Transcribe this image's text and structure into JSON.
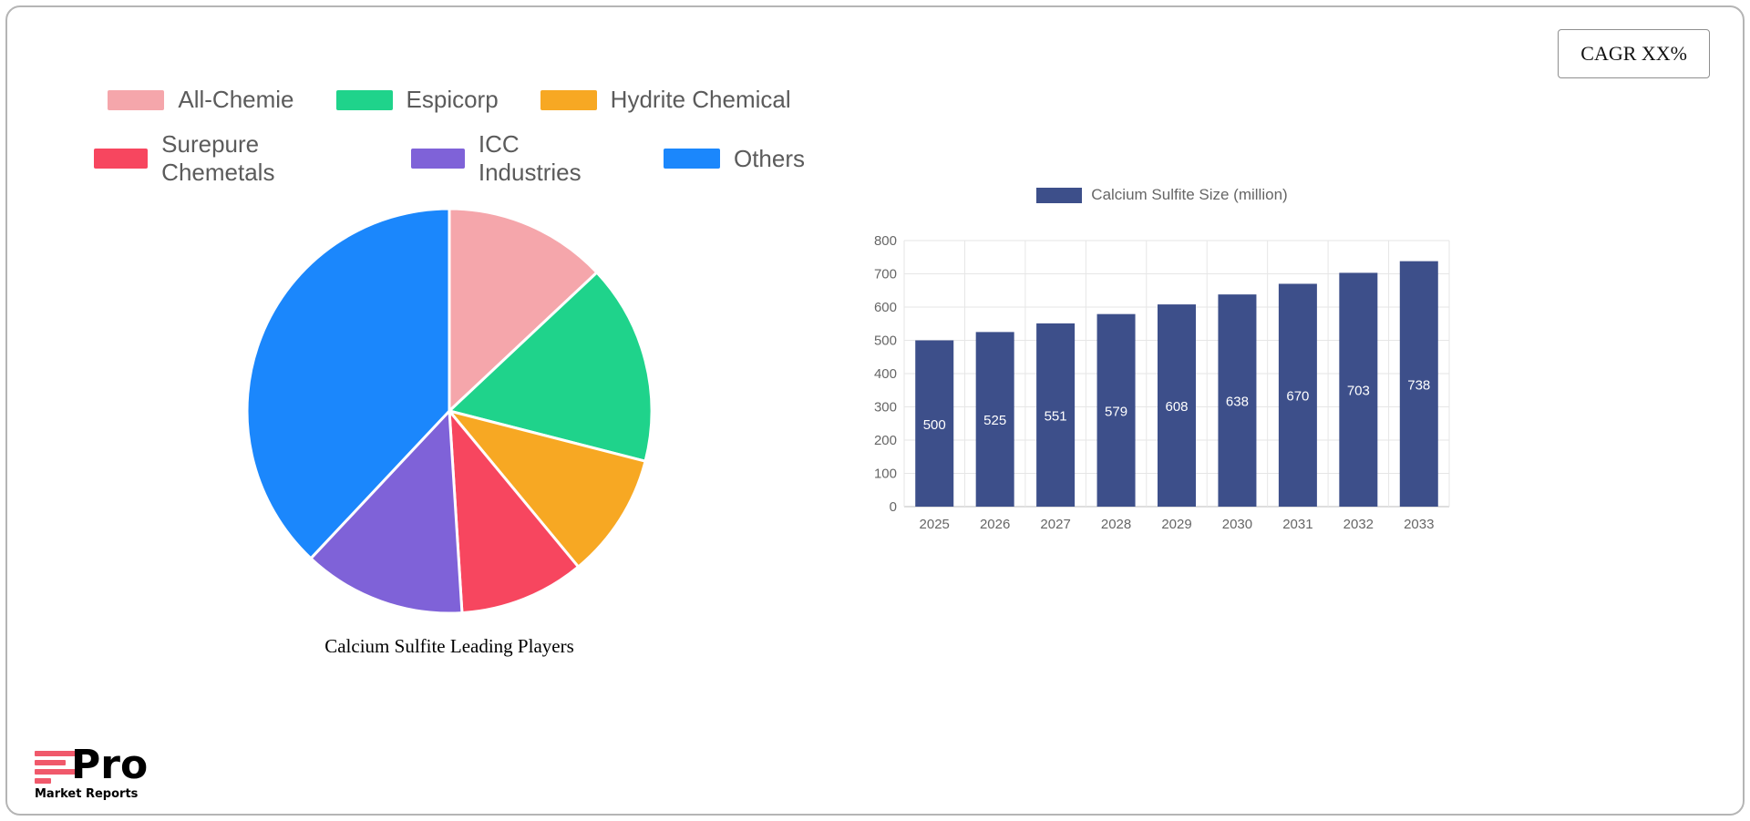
{
  "page": {
    "cagr_label": "CAGR XX%"
  },
  "logo": {
    "name": "Pro",
    "subtitle": "Market Reports"
  },
  "chart_data": [
    {
      "type": "pie",
      "title": "Calcium Sulfite Leading Players",
      "labels": [
        "All-Chemie",
        "Espicorp",
        "Hydrite Chemical",
        "Surepure Chemetals",
        "ICC Industries",
        "Others"
      ],
      "values": [
        13,
        16,
        10,
        10,
        13,
        38
      ],
      "colors": [
        "#f5a6ab",
        "#1fd38b",
        "#f7a823",
        "#f7465f",
        "#7f62d8",
        "#1b87fc"
      ],
      "legend_position": "top",
      "start_angle": "top",
      "direction": "clockwise"
    },
    {
      "type": "bar",
      "series_name": "Calcium Sulfite Size (million)",
      "categories": [
        "2025",
        "2026",
        "2027",
        "2028",
        "2029",
        "2030",
        "2031",
        "2032",
        "2033"
      ],
      "values": [
        500,
        525,
        551,
        579,
        608,
        638,
        670,
        703,
        738
      ],
      "bar_color": "#3d4f8a",
      "value_label_color": "#ffffff",
      "ylim": [
        0,
        800
      ],
      "ytick_step": 100,
      "grid": true,
      "legend_position": "top"
    }
  ]
}
